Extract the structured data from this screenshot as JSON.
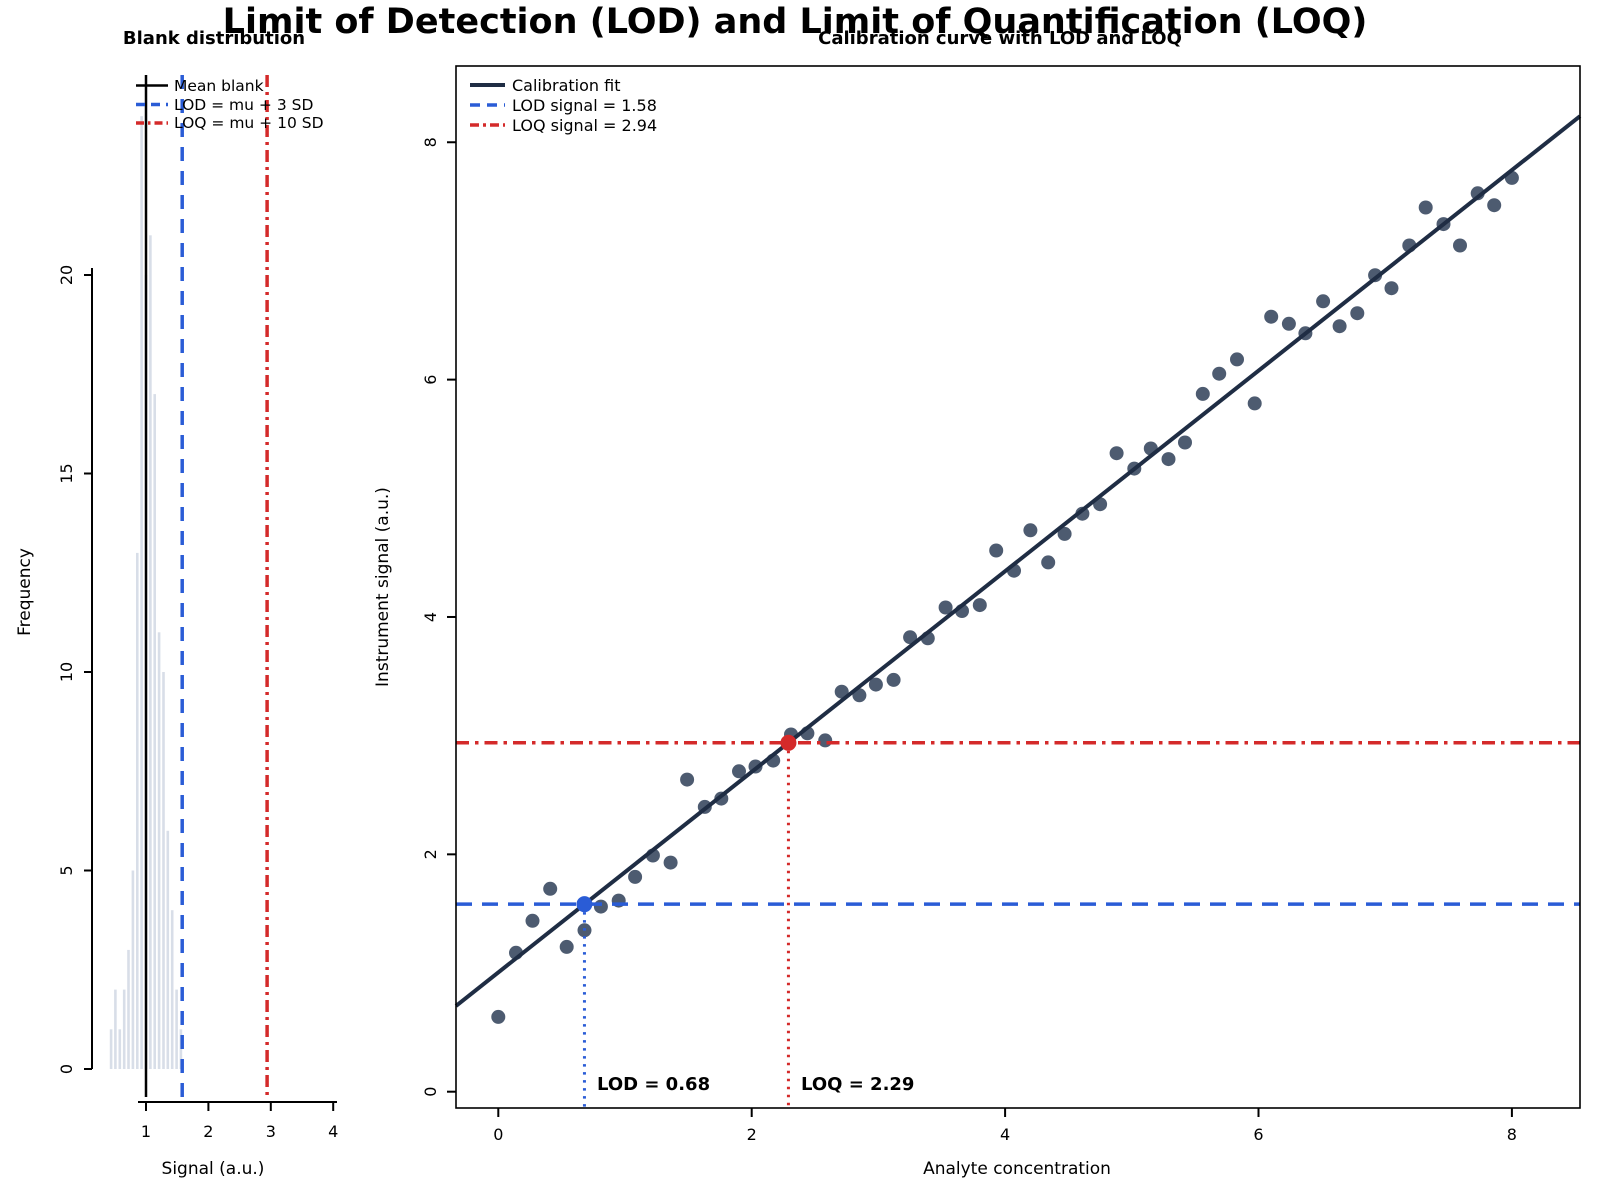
{
  "title": "Limit of Detection (LOD) and Limit of Quantification (LOQ)",
  "colors": {
    "black": "#000000",
    "blue": "#2a5cd6",
    "red": "#d42a2a",
    "fit_line": "#1f2d44",
    "point": "#3e4d64",
    "hist_bar": "#d8dee8"
  },
  "panels": {
    "blank": {
      "subtitle": "Blank distribution",
      "xlabel": "Signal (a.u.)",
      "ylabel": "Frequency",
      "legend": [
        {
          "label": "Mean blank",
          "color": "#000000",
          "style": "solid"
        },
        {
          "label": "LOD = mu + 3 SD",
          "color": "#2a5cd6",
          "style": "dashed"
        },
        {
          "label": "LOQ = mu + 10 SD",
          "color": "#d42a2a",
          "style": "dashdot"
        }
      ]
    },
    "calibration": {
      "subtitle": "Calibration curve with LOD and LOQ",
      "xlabel": "Analyte concentration",
      "ylabel": "Instrument signal (a.u.)",
      "legend": [
        {
          "label": "Calibration fit",
          "color": "#1f2d44",
          "style": "solid"
        },
        {
          "label": "LOD signal = 1.58",
          "color": "#2a5cd6",
          "style": "dashed"
        },
        {
          "label": "LOQ signal = 2.94",
          "color": "#d42a2a",
          "style": "dashdot"
        }
      ],
      "annotations": {
        "lod": "LOD = 0.68",
        "loq": "LOQ = 2.29"
      }
    }
  },
  "chart_data": [
    {
      "type": "bar",
      "title": "Blank distribution",
      "xlabel": "Signal (a.u.)",
      "ylabel": "Frequency",
      "bin_width": 0.07,
      "bin_centers": [
        0.44,
        0.51,
        0.58,
        0.65,
        0.72,
        0.79,
        0.86,
        0.93,
        1.0,
        1.07,
        1.14,
        1.21,
        1.28,
        1.35,
        1.42,
        1.49,
        1.56
      ],
      "values": [
        1,
        2,
        1,
        2,
        3,
        5,
        13,
        24,
        20,
        21,
        17,
        11,
        10,
        6,
        4,
        2,
        1
      ],
      "xticks": [
        1,
        2,
        3,
        4
      ],
      "yticks": [
        0,
        5,
        10,
        15,
        20
      ],
      "xlim": [
        0.32,
        4.2
      ],
      "ylim": [
        0,
        25
      ],
      "grid": false,
      "vlines": [
        {
          "x": 1.0,
          "label": "Mean blank",
          "color": "black"
        },
        {
          "x": 1.58,
          "label": "LOD = mu + 3 SD",
          "color": "blue"
        },
        {
          "x": 2.94,
          "label": "LOQ = mu + 10 SD",
          "color": "red"
        }
      ],
      "legend_position": "top-left"
    },
    {
      "type": "scatter",
      "title": "Calibration curve with LOD and LOQ",
      "xlabel": "Analyte concentration",
      "ylabel": "Instrument signal (a.u.)",
      "xticks": [
        0,
        2,
        4,
        6,
        8
      ],
      "yticks": [
        0,
        2,
        4,
        6,
        8
      ],
      "xlim": [
        -0.34,
        8.54
      ],
      "ylim": [
        -0.14,
        8.64
      ],
      "grid": false,
      "fit": {
        "slope": 0.845,
        "intercept": 1.005
      },
      "lod": {
        "concentration": 0.68,
        "signal": 1.58
      },
      "loq": {
        "concentration": 2.29,
        "signal": 2.94
      },
      "legend_position": "top-left",
      "points": [
        [
          0.0,
          0.63
        ],
        [
          0.14,
          1.17
        ],
        [
          0.27,
          1.44
        ],
        [
          0.41,
          1.71
        ],
        [
          0.54,
          1.22
        ],
        [
          0.68,
          1.36
        ],
        [
          0.81,
          1.56
        ],
        [
          0.95,
          1.61
        ],
        [
          1.08,
          1.81
        ],
        [
          1.22,
          1.99
        ],
        [
          1.36,
          1.93
        ],
        [
          1.49,
          2.63
        ],
        [
          1.63,
          2.4
        ],
        [
          1.76,
          2.47
        ],
        [
          1.9,
          2.7
        ],
        [
          2.03,
          2.74
        ],
        [
          2.17,
          2.79
        ],
        [
          2.31,
          3.01
        ],
        [
          2.44,
          3.02
        ],
        [
          2.58,
          2.96
        ],
        [
          2.71,
          3.37
        ],
        [
          2.85,
          3.34
        ],
        [
          2.98,
          3.43
        ],
        [
          3.12,
          3.47
        ],
        [
          3.25,
          3.83
        ],
        [
          3.39,
          3.82
        ],
        [
          3.53,
          4.08
        ],
        [
          3.66,
          4.05
        ],
        [
          3.8,
          4.1
        ],
        [
          3.93,
          4.56
        ],
        [
          4.07,
          4.39
        ],
        [
          4.2,
          4.73
        ],
        [
          4.34,
          4.46
        ],
        [
          4.47,
          4.7
        ],
        [
          4.61,
          4.87
        ],
        [
          4.75,
          4.95
        ],
        [
          4.88,
          5.38
        ],
        [
          5.02,
          5.25
        ],
        [
          5.15,
          5.42
        ],
        [
          5.29,
          5.33
        ],
        [
          5.42,
          5.47
        ],
        [
          5.56,
          5.88
        ],
        [
          5.69,
          6.05
        ],
        [
          5.83,
          6.17
        ],
        [
          5.97,
          5.8
        ],
        [
          6.1,
          6.53
        ],
        [
          6.24,
          6.47
        ],
        [
          6.37,
          6.39
        ],
        [
          6.51,
          6.66
        ],
        [
          6.64,
          6.45
        ],
        [
          6.78,
          6.56
        ],
        [
          6.92,
          6.88
        ],
        [
          7.05,
          6.77
        ],
        [
          7.19,
          7.13
        ],
        [
          7.32,
          7.45
        ],
        [
          7.46,
          7.31
        ],
        [
          7.59,
          7.13
        ],
        [
          7.73,
          7.57
        ],
        [
          7.86,
          7.47
        ],
        [
          8.0,
          7.7
        ]
      ]
    }
  ]
}
